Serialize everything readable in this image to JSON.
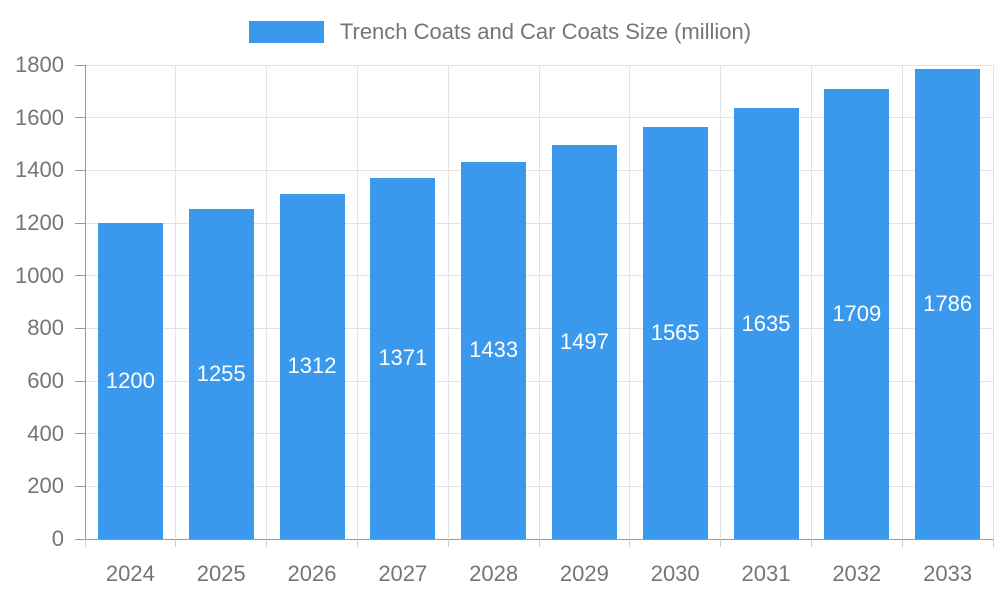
{
  "chart_data": {
    "type": "bar",
    "title": "Trench Coats and Car Coats Size (million)",
    "categories": [
      "2024",
      "2025",
      "2026",
      "2027",
      "2028",
      "2029",
      "2030",
      "2031",
      "2032",
      "2033"
    ],
    "values": [
      1200,
      1255,
      1312,
      1371,
      1433,
      1497,
      1565,
      1635,
      1709,
      1786
    ],
    "xlabel": "",
    "ylabel": "",
    "ylim": [
      0,
      1800
    ],
    "ytick_step": 200,
    "ytick_labels": [
      "0",
      "200",
      "400",
      "600",
      "800",
      "1000",
      "1200",
      "1400",
      "1600",
      "1800"
    ],
    "grid": true,
    "legend_position": "top-center",
    "value_label_position": "inside-middle"
  },
  "legend": {
    "label": "Trench Coats and Car Coats Size (million)"
  },
  "colors": {
    "bar": "#3a99ec",
    "bar_label_text": "#ffffff",
    "axis_text": "#757575",
    "legend_text": "#757575",
    "grid_line": "#e3e3e3",
    "axis_line": "#9a9a9a",
    "x_tick_line": "#cccccc",
    "y_tick_line": "#9a9a9a",
    "background": "#ffffff"
  }
}
